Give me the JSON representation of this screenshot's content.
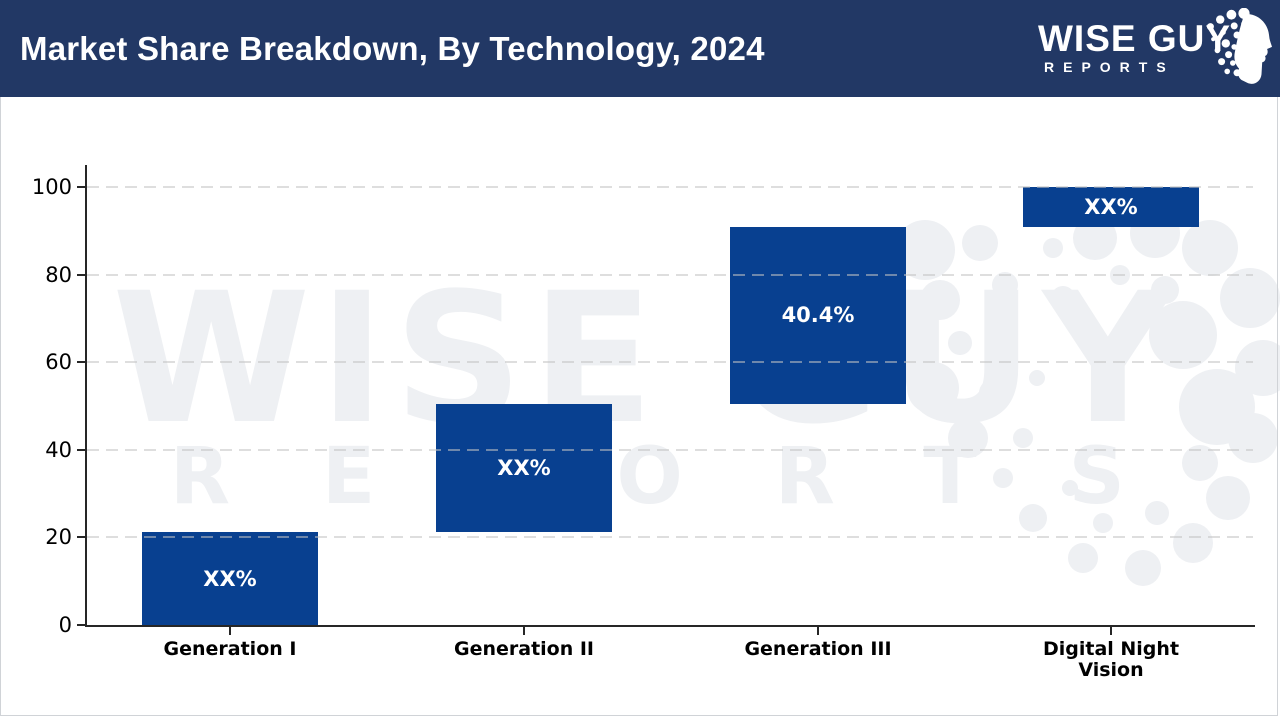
{
  "header": {
    "title": "Market Share Breakdown, By Technology, 2024",
    "logo": {
      "line1": "WISE GUY",
      "line2": "REPORTS"
    }
  },
  "watermark": {
    "line1": "WISE GUY",
    "line2": "REPORTS"
  },
  "colors": {
    "header_bg": "#223865",
    "bar": "#084090",
    "grid": "#c3c3c3",
    "axis": "#262626",
    "watermark": "#eef0f3",
    "frame": "#d0d3d7"
  },
  "chart_data": {
    "type": "bar",
    "variant": "waterfall-floating-bars",
    "title": "Market Share Breakdown, By Technology, 2024",
    "categories": [
      "Generation I",
      "Generation II",
      "Generation III",
      "Digital Night Vision"
    ],
    "bars": [
      {
        "category": "Generation I",
        "start": 0,
        "end": 21.2,
        "delta": 21.2,
        "label": "XX%"
      },
      {
        "category": "Generation II",
        "start": 21.2,
        "end": 50.5,
        "delta": 29.3,
        "label": "XX%"
      },
      {
        "category": "Generation III",
        "start": 50.5,
        "end": 90.9,
        "delta": 40.4,
        "label": "40.4%"
      },
      {
        "category": "Digital Night Vision",
        "start": 90.9,
        "end": 100,
        "delta": 9.1,
        "label": "XX%"
      }
    ],
    "xlabel": "",
    "ylabel": "",
    "ylim": [
      0,
      100
    ],
    "yticks": [
      0,
      20,
      40,
      60,
      80,
      100
    ],
    "grid": {
      "axis": "y",
      "style": "dashed",
      "on": true
    },
    "legend": "none",
    "bar_color": "#084090",
    "bar_label_color": "#ffffff"
  }
}
